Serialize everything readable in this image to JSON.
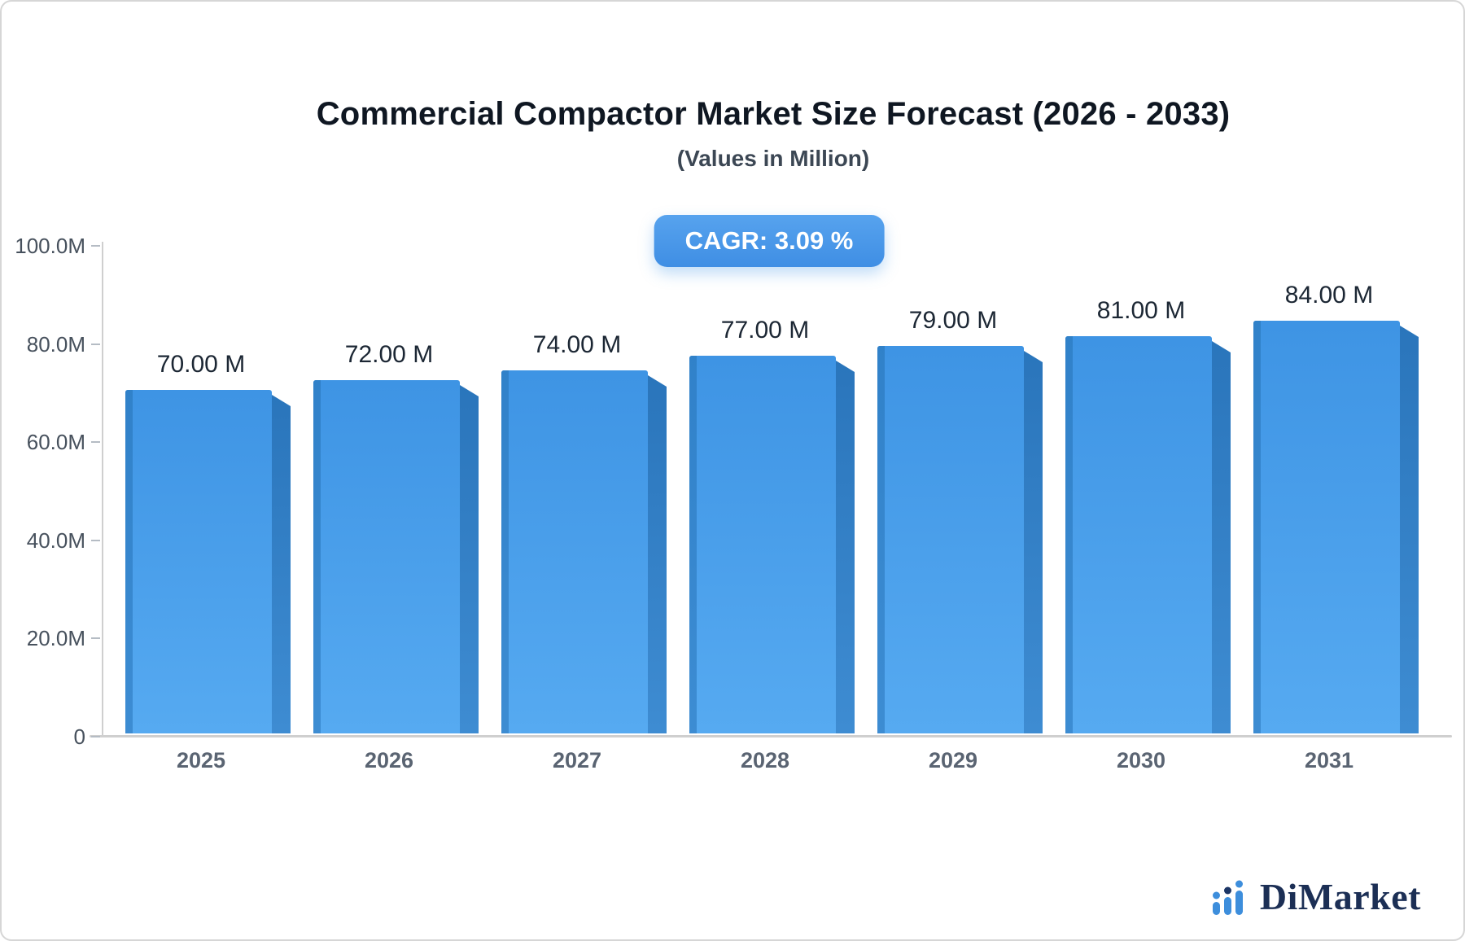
{
  "header": {
    "title": "Commercial Compactor Market Size Forecast (2026 - 2033)",
    "subtitle": "(Values in Million)",
    "cagr_badge": "CAGR: 3.09 %"
  },
  "chart_data": {
    "type": "bar",
    "title": "Commercial Compactor Market Size Forecast (2026 - 2033)",
    "subtitle": "(Values in Million)",
    "unit": "Million",
    "cagr": "3.09 %",
    "categories": [
      "2025",
      "2026",
      "2027",
      "2028",
      "2029",
      "2030",
      "2031"
    ],
    "values": [
      70,
      72,
      74,
      77,
      79,
      81,
      84
    ],
    "value_labels": [
      "70.00 M",
      "72.00 M",
      "74.00 M",
      "77.00 M",
      "79.00 M",
      "81.00 M",
      "84.00 M"
    ],
    "ylim": [
      0,
      100
    ],
    "yticks": [
      {
        "value": 0,
        "label": "0"
      },
      {
        "value": 20,
        "label": "20.0M"
      },
      {
        "value": 40,
        "label": "40.0M"
      },
      {
        "value": 60,
        "label": "60.0M"
      },
      {
        "value": 80,
        "label": "80.0M"
      },
      {
        "value": 100,
        "label": "100.0M"
      }
    ],
    "grid": false,
    "legend": false,
    "colors": {
      "bar_face_top": "#3e94e4",
      "bar_face_bottom": "#56aaf1",
      "bar_side": "#2e7dc3",
      "badge": "#4b9ae9",
      "axis": "#cfcfcf"
    }
  },
  "logo": {
    "text": "DiMarket",
    "icon": "bar-chart-dots-icon",
    "icon_color": "#3d8edc",
    "text_color": "#1c2f55"
  }
}
